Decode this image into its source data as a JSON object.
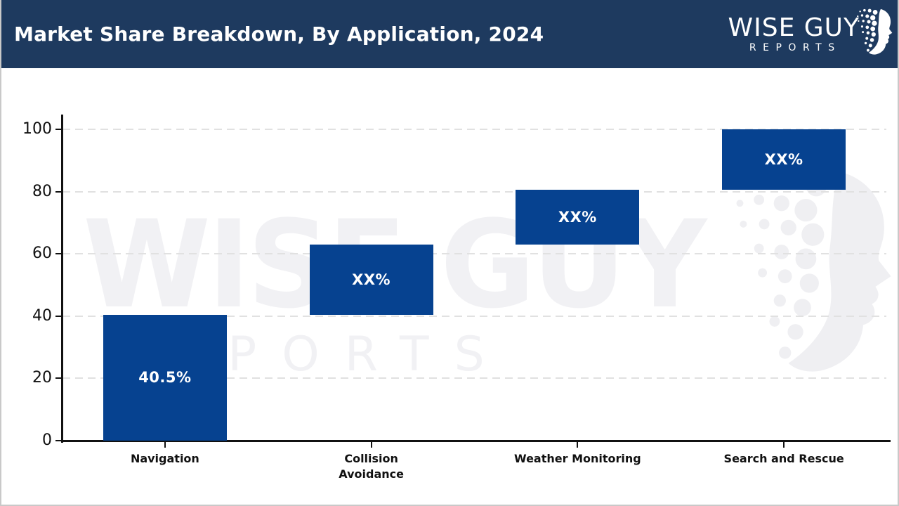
{
  "header": {
    "title": "Market Share Breakdown, By Application, 2024",
    "logo": {
      "line1": "WISE GUY",
      "line2": "REPORTS"
    }
  },
  "watermark": {
    "line1": "WISE GUY",
    "line2": "REPORTS"
  },
  "colors": {
    "header_bg": "#1e3a5f",
    "bar_fill": "#064290",
    "bar_label": "#ffffff",
    "gridline": "#e1e1e1",
    "axis": "#111111",
    "watermark": "#f1f1f4",
    "frame_border": "#c9c9c9"
  },
  "chart_data": {
    "type": "bar",
    "subtype": "waterfall",
    "title": "Market Share Breakdown, By Application, 2024",
    "categories": [
      "Navigation",
      "Collision\nAvoidance",
      "Weather Monitoring",
      "Search and Rescue"
    ],
    "bars": [
      {
        "category": "Navigation",
        "start": 0,
        "end": 40.5,
        "label": "40.5%"
      },
      {
        "category": "Collision\nAvoidance",
        "start": 40.5,
        "end": 63,
        "label": "XX%"
      },
      {
        "category": "Weather Monitoring",
        "start": 63,
        "end": 80.5,
        "label": "XX%"
      },
      {
        "category": "Search and Rescue",
        "start": 80.5,
        "end": 100,
        "label": "XX%"
      }
    ],
    "xlabel": "",
    "ylabel": "",
    "yticks": [
      0,
      20,
      40,
      60,
      80,
      100
    ],
    "ylim": [
      0,
      105
    ],
    "grid": "horizontal-dashed",
    "legend": "none"
  }
}
